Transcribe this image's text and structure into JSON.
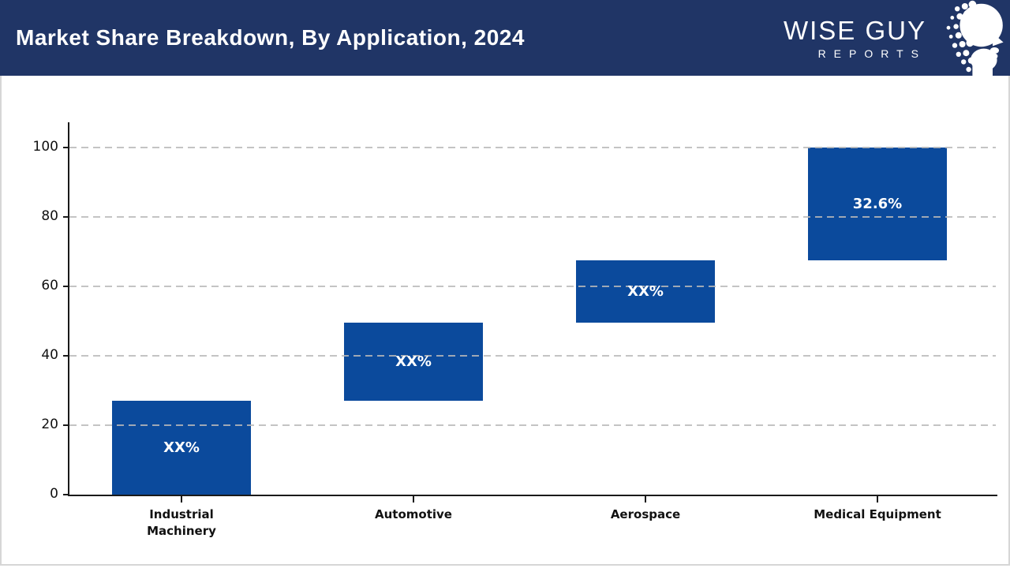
{
  "header": {
    "title": "Market Share Breakdown, By Application, 2024",
    "logo": {
      "wordmark": "WISE GUY",
      "subtext": "REPORTS"
    }
  },
  "watermark": {
    "wordmark": "WISE GUY",
    "subtext": "R E P O R T S"
  },
  "chart_data": {
    "type": "bar",
    "subtype": "waterfall-floating-segments",
    "title": "Market Share Breakdown, By Application, 2024",
    "categories": [
      "Industrial\nMachinery",
      "Automotive",
      "Aerospace",
      "Medical Equipment"
    ],
    "segments": [
      {
        "category": "Industrial Machinery",
        "start": 0,
        "end": 27,
        "value": 27.0,
        "label": "XX%"
      },
      {
        "category": "Automotive",
        "start": 27,
        "end": 49.5,
        "value": 22.5,
        "label": "XX%"
      },
      {
        "category": "Aerospace",
        "start": 49.5,
        "end": 67.4,
        "value": 17.9,
        "label": "XX%"
      },
      {
        "category": "Medical Equipment",
        "start": 67.4,
        "end": 100,
        "value": 32.6,
        "label": "32.6%"
      }
    ],
    "yticks": [
      0,
      20,
      40,
      60,
      80,
      100
    ],
    "ylim": [
      0,
      107
    ],
    "xlabel": "",
    "ylabel": "",
    "grid": "horizontal-dashed",
    "legend": "none",
    "bar_color": "#0b4a9c",
    "label_color": "#ffffff",
    "axis_color": "#1a1a1a",
    "header_color": "#203566"
  }
}
